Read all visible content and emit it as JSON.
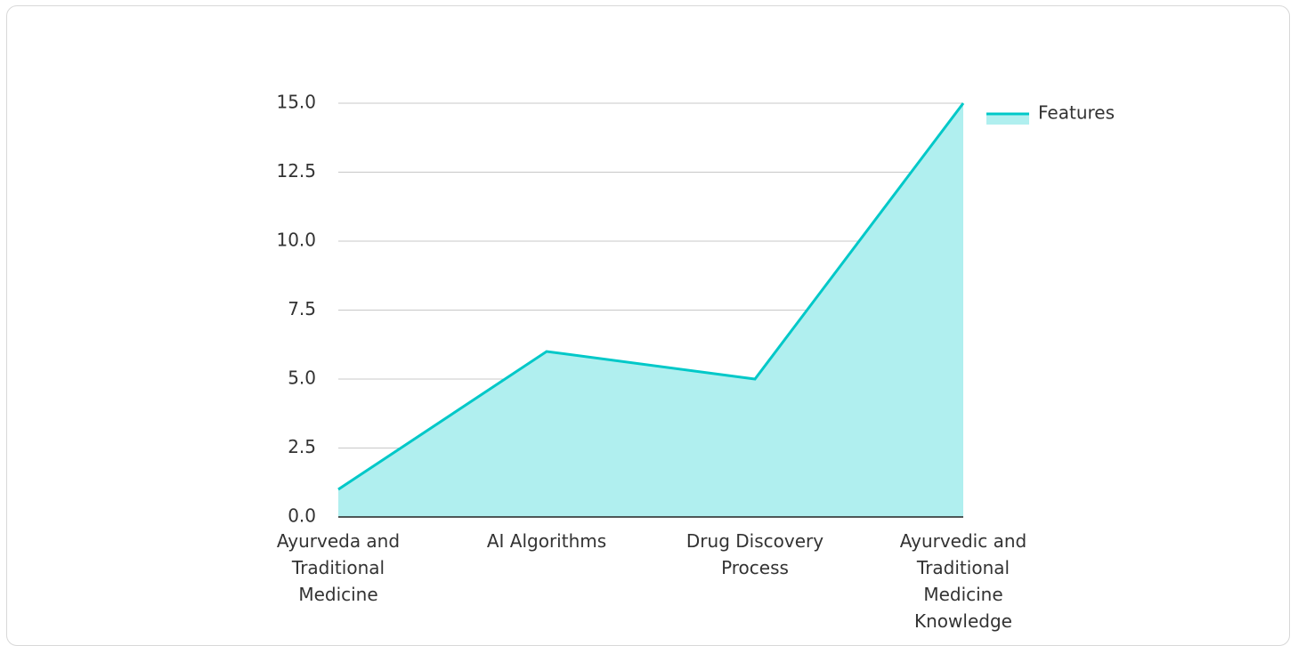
{
  "chart_data": {
    "type": "area",
    "categories": [
      "Ayurveda and Traditional Medicine",
      "AI Algorithms",
      "Drug Discovery Process",
      "Ayurvedic and Traditional Medicine Knowledge"
    ],
    "series": [
      {
        "name": "Features",
        "color": "#00c8c8",
        "fill": "#b0efef",
        "values": [
          1,
          6,
          5,
          15
        ]
      }
    ],
    "ylim": [
      0,
      15
    ],
    "yticks": [
      {
        "value": 0,
        "label": "0.0"
      },
      2.5,
      {
        "value": 5,
        "label": "5.0"
      },
      7.5,
      {
        "value": 10,
        "label": "10.0"
      },
      12.5,
      {
        "value": 15,
        "label": "15.0"
      }
    ],
    "grid": true,
    "legend": "right"
  }
}
